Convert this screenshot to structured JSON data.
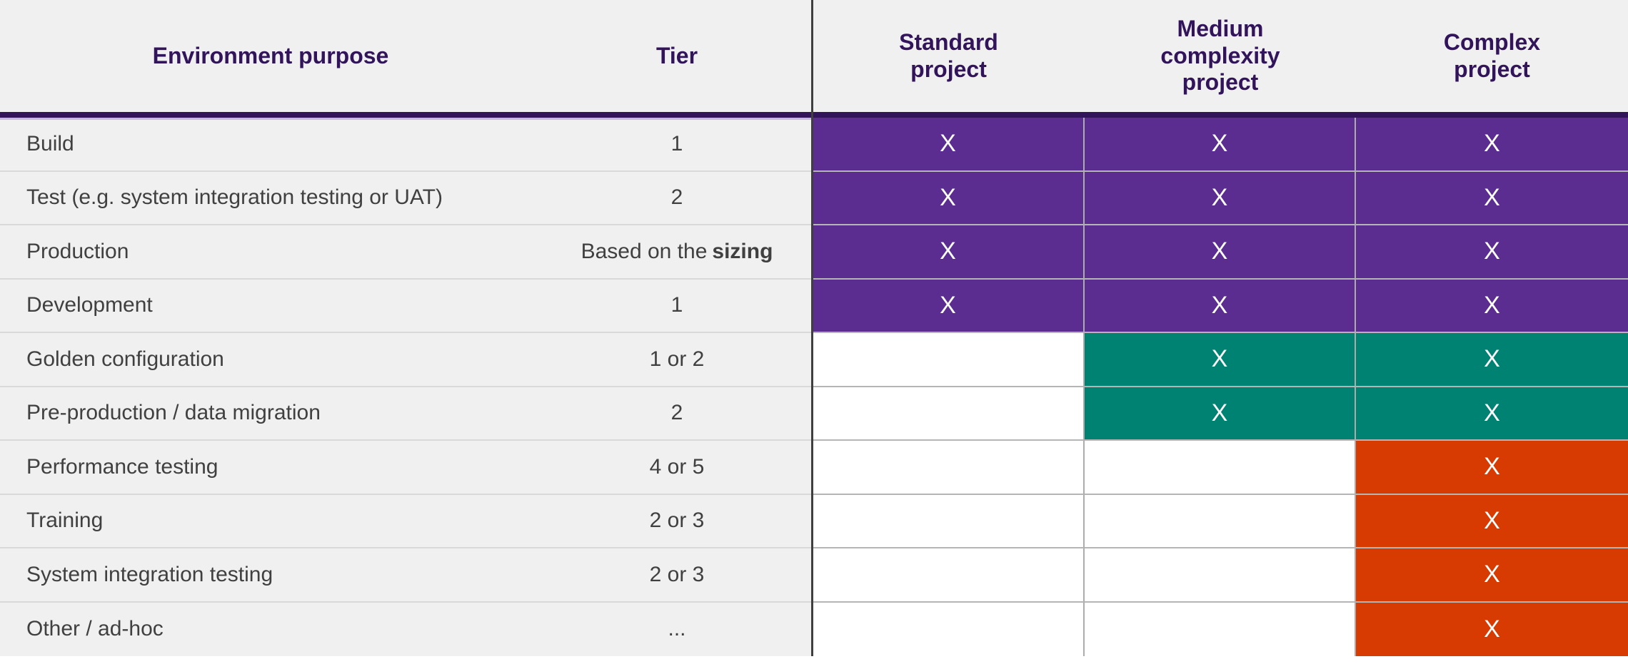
{
  "table": {
    "columns": {
      "environment_purpose": "Environment purpose",
      "tier": "Tier",
      "projects": [
        "Standard\nproject",
        "Medium\ncomplexity\nproject",
        "Complex\nproject"
      ]
    },
    "mark_label": "X",
    "colors": {
      "purple": "#5C2D91",
      "teal": "#008272",
      "orange": "#D83B01",
      "header_text": "#32145A",
      "header_rule": "#32145A",
      "body_text": "#404040",
      "left_background": "#F0F0F0",
      "empty_cell": "#FFFFFF"
    },
    "rows": [
      {
        "purpose": "Build",
        "tier": "1",
        "marks": [
          "purple",
          "purple",
          "purple"
        ]
      },
      {
        "purpose": "Test (e.g. system integration testing or UAT)",
        "tier": "2",
        "marks": [
          "purple",
          "purple",
          "purple"
        ]
      },
      {
        "purpose": "Production",
        "tier": "Based on the",
        "tier_bold": "sizing",
        "marks": [
          "purple",
          "purple",
          "purple"
        ]
      },
      {
        "purpose": "Development",
        "tier": "1",
        "marks": [
          "purple",
          "purple",
          "purple"
        ]
      },
      {
        "purpose": "Golden configuration",
        "tier": "1 or 2",
        "marks": [
          null,
          "teal",
          "teal"
        ]
      },
      {
        "purpose": "Pre-production / data migration",
        "tier": "2",
        "marks": [
          null,
          "teal",
          "teal"
        ]
      },
      {
        "purpose": "Performance testing",
        "tier": "4 or 5",
        "marks": [
          null,
          null,
          "orange"
        ]
      },
      {
        "purpose": "Training",
        "tier": "2 or 3",
        "marks": [
          null,
          null,
          "orange"
        ]
      },
      {
        "purpose": "System integration testing",
        "tier": "2 or 3",
        "marks": [
          null,
          null,
          "orange"
        ]
      },
      {
        "purpose": "Other / ad-hoc",
        "tier": "...",
        "marks": [
          null,
          null,
          "orange"
        ]
      }
    ]
  }
}
